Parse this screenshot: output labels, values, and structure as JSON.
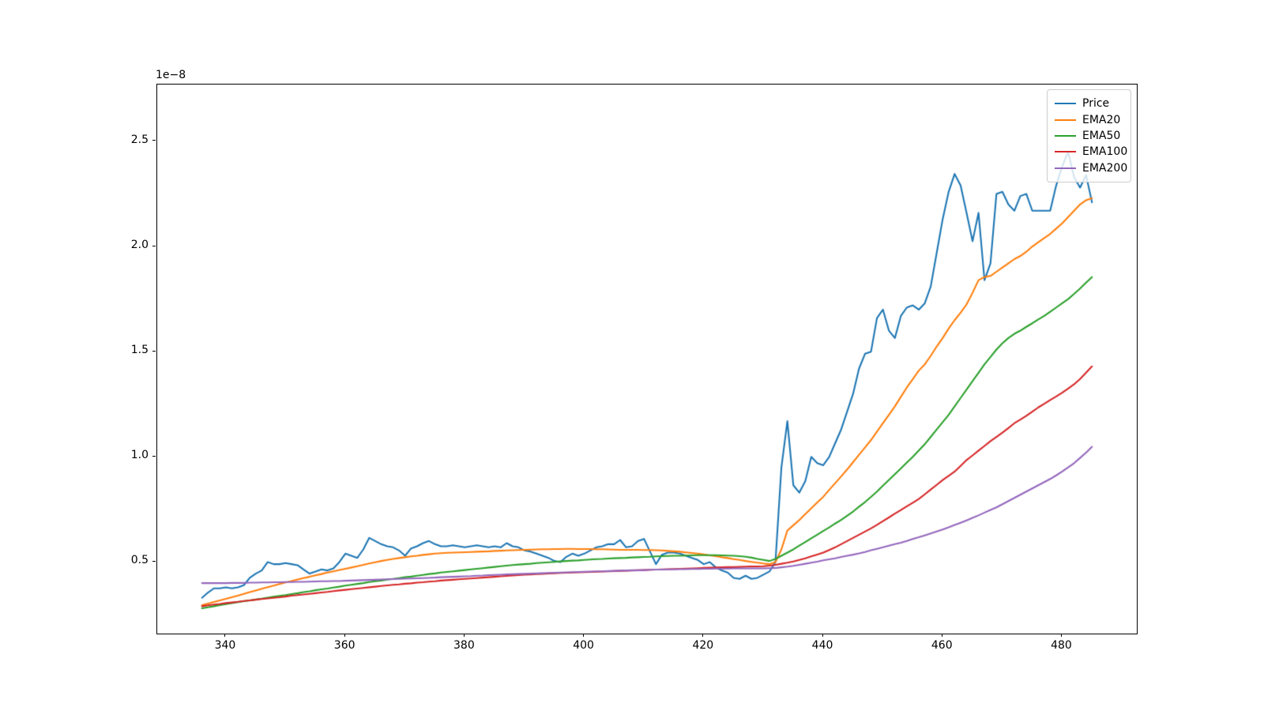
{
  "chart_data": {
    "type": "line",
    "title": "",
    "xlabel": "",
    "ylabel": "",
    "offset_text": "1e−8",
    "y_scale": "1e-8",
    "grid": false,
    "legend": {
      "position": "upper right",
      "entries": [
        "Price",
        "EMA20",
        "EMA50",
        "EMA100",
        "EMA200"
      ]
    },
    "xlim": [
      328.5,
      492.5
    ],
    "ylim": [
      0.16,
      2.77
    ],
    "xticks": [
      340,
      360,
      380,
      400,
      420,
      440,
      460,
      480
    ],
    "xtick_labels": [
      "340",
      "360",
      "380",
      "400",
      "420",
      "440",
      "460",
      "480"
    ],
    "yticks": [
      0.5,
      1.0,
      1.5,
      2.0,
      2.5
    ],
    "ytick_labels": [
      "0.5",
      "1.0",
      "1.5",
      "2.0",
      "2.5"
    ],
    "x": [
      336,
      337,
      338,
      339,
      340,
      341,
      342,
      343,
      344,
      345,
      346,
      347,
      348,
      349,
      350,
      351,
      352,
      353,
      354,
      355,
      356,
      357,
      358,
      359,
      360,
      361,
      362,
      363,
      364,
      365,
      366,
      367,
      368,
      369,
      370,
      371,
      372,
      373,
      374,
      375,
      376,
      377,
      378,
      379,
      380,
      381,
      382,
      383,
      384,
      385,
      386,
      387,
      388,
      389,
      390,
      391,
      392,
      393,
      394,
      395,
      396,
      397,
      398,
      399,
      400,
      401,
      402,
      403,
      404,
      405,
      406,
      407,
      408,
      409,
      410,
      411,
      412,
      413,
      414,
      415,
      416,
      417,
      418,
      419,
      420,
      421,
      422,
      423,
      424,
      425,
      426,
      427,
      428,
      429,
      430,
      431,
      432,
      433,
      434,
      435,
      436,
      437,
      438,
      439,
      440,
      441,
      442,
      443,
      444,
      445,
      446,
      447,
      448,
      449,
      450,
      451,
      452,
      453,
      454,
      455,
      456,
      457,
      458,
      459,
      460,
      461,
      462,
      463,
      464,
      465,
      466,
      467,
      468,
      469,
      470,
      471,
      472,
      473,
      474,
      475,
      476,
      477,
      478,
      479,
      480,
      481,
      482,
      483,
      484,
      485
    ],
    "series": [
      {
        "name": "Price",
        "color": "#1f77b4",
        "values": [
          0.33,
          0.355,
          0.375,
          0.375,
          0.38,
          0.375,
          0.38,
          0.39,
          0.425,
          0.445,
          0.46,
          0.5,
          0.49,
          0.49,
          0.495,
          0.49,
          0.485,
          0.465,
          0.445,
          0.455,
          0.465,
          0.46,
          0.47,
          0.5,
          0.54,
          0.53,
          0.52,
          0.56,
          0.615,
          0.6,
          0.585,
          0.575,
          0.57,
          0.555,
          0.53,
          0.565,
          0.575,
          0.59,
          0.6,
          0.585,
          0.575,
          0.575,
          0.58,
          0.575,
          0.57,
          0.575,
          0.58,
          0.575,
          0.57,
          0.575,
          0.57,
          0.59,
          0.575,
          0.57,
          0.555,
          0.55,
          0.54,
          0.53,
          0.52,
          0.505,
          0.5,
          0.525,
          0.54,
          0.53,
          0.54,
          0.555,
          0.57,
          0.575,
          0.585,
          0.585,
          0.605,
          0.57,
          0.575,
          0.6,
          0.61,
          0.55,
          0.49,
          0.535,
          0.545,
          0.545,
          0.54,
          0.53,
          0.52,
          0.51,
          0.49,
          0.5,
          0.475,
          0.46,
          0.45,
          0.425,
          0.42,
          0.435,
          0.42,
          0.425,
          0.44,
          0.455,
          0.5,
          0.95,
          1.17,
          0.865,
          0.83,
          0.885,
          1.0,
          0.97,
          0.96,
          1.0,
          1.065,
          1.13,
          1.215,
          1.3,
          1.42,
          1.49,
          1.5,
          1.66,
          1.7,
          1.6,
          1.565,
          1.67,
          1.71,
          1.72,
          1.7,
          1.73,
          1.81,
          1.97,
          2.13,
          2.26,
          2.345,
          2.29,
          2.16,
          2.025,
          2.16,
          1.84,
          1.92,
          2.25,
          2.26,
          2.2,
          2.17,
          2.24,
          2.25,
          2.17,
          2.17,
          2.17,
          2.17,
          2.29,
          2.38,
          2.45,
          2.33,
          2.28,
          2.34,
          2.21
        ]
      },
      {
        "name": "EMA20",
        "color": "#ff7f0e",
        "values": [
          0.295,
          0.303,
          0.31,
          0.318,
          0.325,
          0.333,
          0.34,
          0.349,
          0.357,
          0.365,
          0.373,
          0.381,
          0.388,
          0.396,
          0.403,
          0.41,
          0.417,
          0.424,
          0.43,
          0.437,
          0.443,
          0.45,
          0.456,
          0.462,
          0.468,
          0.474,
          0.48,
          0.487,
          0.493,
          0.499,
          0.505,
          0.51,
          0.515,
          0.519,
          0.523,
          0.527,
          0.53,
          0.534,
          0.537,
          0.54,
          0.542,
          0.544,
          0.545,
          0.546,
          0.547,
          0.548,
          0.549,
          0.55,
          0.551,
          0.553,
          0.554,
          0.555,
          0.556,
          0.557,
          0.558,
          0.559,
          0.56,
          0.561,
          0.561,
          0.562,
          0.562,
          0.563,
          0.563,
          0.562,
          0.562,
          0.562,
          0.561,
          0.561,
          0.56,
          0.559,
          0.558,
          0.558,
          0.558,
          0.558,
          0.557,
          0.557,
          0.556,
          0.555,
          0.553,
          0.551,
          0.549,
          0.546,
          0.543,
          0.54,
          0.536,
          0.532,
          0.528,
          0.523,
          0.519,
          0.514,
          0.51,
          0.505,
          0.501,
          0.497,
          0.493,
          0.49,
          0.5,
          0.56,
          0.65,
          0.675,
          0.7,
          0.728,
          0.755,
          0.783,
          0.81,
          0.843,
          0.875,
          0.907,
          0.94,
          0.975,
          1.01,
          1.045,
          1.08,
          1.12,
          1.16,
          1.2,
          1.24,
          1.285,
          1.33,
          1.37,
          1.41,
          1.44,
          1.48,
          1.525,
          1.565,
          1.61,
          1.65,
          1.685,
          1.725,
          1.78,
          1.84,
          1.855,
          1.86,
          1.88,
          1.9,
          1.92,
          1.94,
          1.955,
          1.975,
          2.0,
          2.02,
          2.04,
          2.06,
          2.085,
          2.11,
          2.14,
          2.17,
          2.2,
          2.22,
          2.23
        ]
      },
      {
        "name": "EMA50",
        "color": "#2ca02c",
        "values": [
          0.28,
          0.285,
          0.29,
          0.295,
          0.3,
          0.305,
          0.309,
          0.314,
          0.318,
          0.322,
          0.326,
          0.331,
          0.335,
          0.339,
          0.343,
          0.348,
          0.352,
          0.357,
          0.361,
          0.366,
          0.37,
          0.374,
          0.379,
          0.383,
          0.388,
          0.392,
          0.396,
          0.4,
          0.405,
          0.409,
          0.412,
          0.416,
          0.42,
          0.424,
          0.428,
          0.431,
          0.435,
          0.439,
          0.443,
          0.446,
          0.45,
          0.453,
          0.456,
          0.459,
          0.462,
          0.465,
          0.468,
          0.471,
          0.474,
          0.477,
          0.48,
          0.483,
          0.486,
          0.488,
          0.49,
          0.492,
          0.495,
          0.497,
          0.499,
          0.501,
          0.503,
          0.505,
          0.507,
          0.508,
          0.51,
          0.512,
          0.514,
          0.515,
          0.517,
          0.518,
          0.519,
          0.52,
          0.522,
          0.523,
          0.524,
          0.525,
          0.527,
          0.528,
          0.529,
          0.53,
          0.53,
          0.531,
          0.532,
          0.533,
          0.533,
          0.533,
          0.533,
          0.532,
          0.531,
          0.53,
          0.528,
          0.525,
          0.521,
          0.515,
          0.51,
          0.505,
          0.515,
          0.53,
          0.545,
          0.56,
          0.578,
          0.595,
          0.613,
          0.63,
          0.648,
          0.665,
          0.683,
          0.7,
          0.72,
          0.74,
          0.763,
          0.785,
          0.81,
          0.835,
          0.863,
          0.89,
          0.918,
          0.945,
          0.973,
          1.0,
          1.03,
          1.06,
          1.095,
          1.13,
          1.165,
          1.2,
          1.24,
          1.28,
          1.32,
          1.36,
          1.4,
          1.44,
          1.475,
          1.51,
          1.54,
          1.565,
          1.585,
          1.6,
          1.618,
          1.635,
          1.653,
          1.67,
          1.69,
          1.71,
          1.73,
          1.75,
          1.775,
          1.8,
          1.828,
          1.855
        ]
      },
      {
        "name": "EMA100",
        "color": "#d62728",
        "values": [
          0.29,
          0.294,
          0.298,
          0.301,
          0.305,
          0.308,
          0.311,
          0.315,
          0.318,
          0.321,
          0.324,
          0.327,
          0.33,
          0.333,
          0.336,
          0.34,
          0.343,
          0.346,
          0.349,
          0.352,
          0.355,
          0.358,
          0.362,
          0.365,
          0.368,
          0.371,
          0.374,
          0.377,
          0.38,
          0.383,
          0.386,
          0.389,
          0.392,
          0.394,
          0.397,
          0.399,
          0.402,
          0.404,
          0.407,
          0.409,
          0.412,
          0.414,
          0.416,
          0.418,
          0.42,
          0.422,
          0.424,
          0.426,
          0.428,
          0.43,
          0.432,
          0.434,
          0.436,
          0.438,
          0.44,
          0.441,
          0.443,
          0.444,
          0.446,
          0.447,
          0.448,
          0.449,
          0.45,
          0.451,
          0.452,
          0.453,
          0.454,
          0.455,
          0.456,
          0.457,
          0.458,
          0.459,
          0.46,
          0.461,
          0.462,
          0.463,
          0.464,
          0.465,
          0.466,
          0.467,
          0.468,
          0.469,
          0.47,
          0.471,
          0.472,
          0.473,
          0.474,
          0.475,
          0.476,
          0.476,
          0.477,
          0.478,
          0.479,
          0.479,
          0.48,
          0.483,
          0.487,
          0.492,
          0.497,
          0.503,
          0.51,
          0.518,
          0.527,
          0.536,
          0.545,
          0.557,
          0.57,
          0.585,
          0.6,
          0.615,
          0.63,
          0.645,
          0.66,
          0.677,
          0.695,
          0.712,
          0.73,
          0.747,
          0.765,
          0.782,
          0.8,
          0.822,
          0.845,
          0.867,
          0.89,
          0.91,
          0.93,
          0.957,
          0.985,
          1.007,
          1.03,
          1.052,
          1.075,
          1.095,
          1.115,
          1.137,
          1.16,
          1.177,
          1.195,
          1.215,
          1.235,
          1.252,
          1.27,
          1.287,
          1.305,
          1.325,
          1.345,
          1.37,
          1.4,
          1.43
        ]
      },
      {
        "name": "EMA200",
        "color": "#9467bd",
        "values": [
          0.4,
          0.4,
          0.4,
          0.4,
          0.4,
          0.401,
          0.401,
          0.401,
          0.402,
          0.402,
          0.403,
          0.403,
          0.404,
          0.404,
          0.405,
          0.405,
          0.406,
          0.406,
          0.407,
          0.408,
          0.409,
          0.409,
          0.41,
          0.41,
          0.411,
          0.412,
          0.413,
          0.414,
          0.415,
          0.416,
          0.417,
          0.418,
          0.419,
          0.42,
          0.421,
          0.422,
          0.423,
          0.424,
          0.425,
          0.426,
          0.428,
          0.429,
          0.43,
          0.431,
          0.432,
          0.433,
          0.435,
          0.436,
          0.438,
          0.439,
          0.44,
          0.441,
          0.442,
          0.443,
          0.444,
          0.445,
          0.446,
          0.447,
          0.448,
          0.449,
          0.45,
          0.451,
          0.452,
          0.453,
          0.454,
          0.455,
          0.456,
          0.456,
          0.457,
          0.458,
          0.459,
          0.46,
          0.461,
          0.461,
          0.462,
          0.463,
          0.464,
          0.464,
          0.465,
          0.465,
          0.466,
          0.466,
          0.467,
          0.467,
          0.468,
          0.468,
          0.469,
          0.469,
          0.469,
          0.47,
          0.47,
          0.47,
          0.47,
          0.47,
          0.47,
          0.471,
          0.472,
          0.475,
          0.478,
          0.482,
          0.487,
          0.492,
          0.497,
          0.502,
          0.508,
          0.513,
          0.518,
          0.524,
          0.53,
          0.535,
          0.541,
          0.548,
          0.556,
          0.563,
          0.57,
          0.578,
          0.585,
          0.592,
          0.6,
          0.61,
          0.618,
          0.627,
          0.636,
          0.645,
          0.655,
          0.665,
          0.676,
          0.687,
          0.698,
          0.71,
          0.722,
          0.735,
          0.748,
          0.76,
          0.775,
          0.79,
          0.805,
          0.82,
          0.835,
          0.85,
          0.865,
          0.88,
          0.895,
          0.912,
          0.93,
          0.95,
          0.97,
          0.995,
          1.02,
          1.048
        ]
      }
    ]
  }
}
